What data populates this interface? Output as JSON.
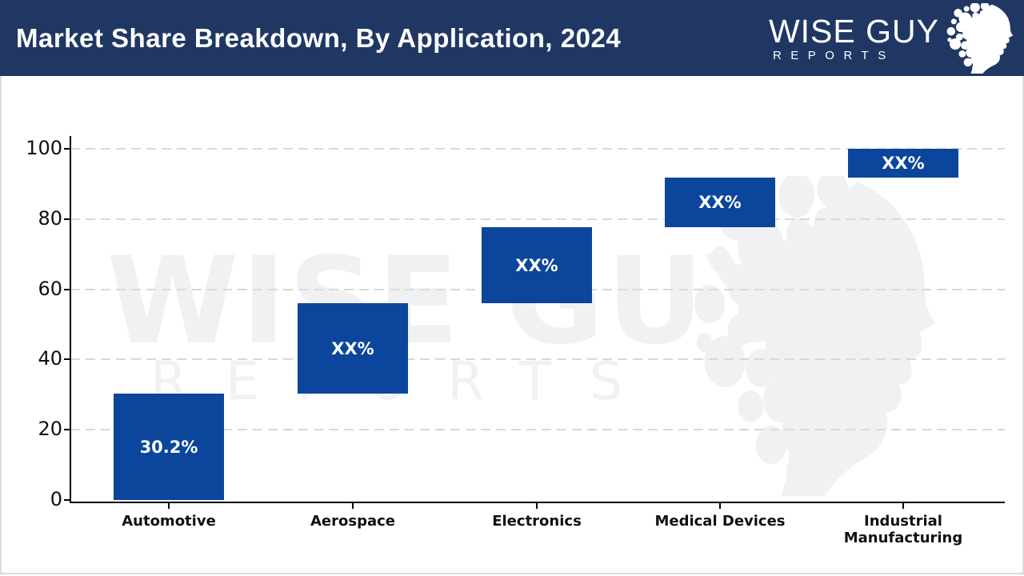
{
  "header": {
    "title": "Market Share Breakdown, By Application, 2024",
    "logo": {
      "line1": "WISE GUY",
      "line2": "REPORTS"
    }
  },
  "watermark": {
    "line1": "WISE GUY",
    "line2": "REPORTS"
  },
  "colors": {
    "header_bg": "#203764",
    "bar": "#0B459C",
    "bar_label": "#FFFFFF",
    "gridline": "#D9D9D9",
    "axis": "#000000",
    "watermark": "#F0F1F3"
  },
  "chart_data": {
    "type": "bar",
    "subtype": "waterfall",
    "title": "Market Share Breakdown, By Application, 2024",
    "xlabel": "",
    "ylabel": "",
    "ylim": [
      0,
      105
    ],
    "y_ticks": [
      0,
      20,
      40,
      60,
      80,
      100
    ],
    "grid": "horizontal-dashed",
    "legend": "none",
    "bars": [
      {
        "category": "Automotive",
        "start": 0,
        "end": 30.2,
        "label": "30.2%"
      },
      {
        "category": "Aerospace",
        "start": 30.2,
        "end": 56.0,
        "label": "XX%"
      },
      {
        "category": "Electronics",
        "start": 56.0,
        "end": 77.7,
        "label": "XX%"
      },
      {
        "category": "Medical Devices",
        "start": 77.7,
        "end": 91.8,
        "label": "XX%"
      },
      {
        "category": "Industrial Manufacturing",
        "start": 91.8,
        "end": 100,
        "label": "XX%"
      }
    ]
  }
}
